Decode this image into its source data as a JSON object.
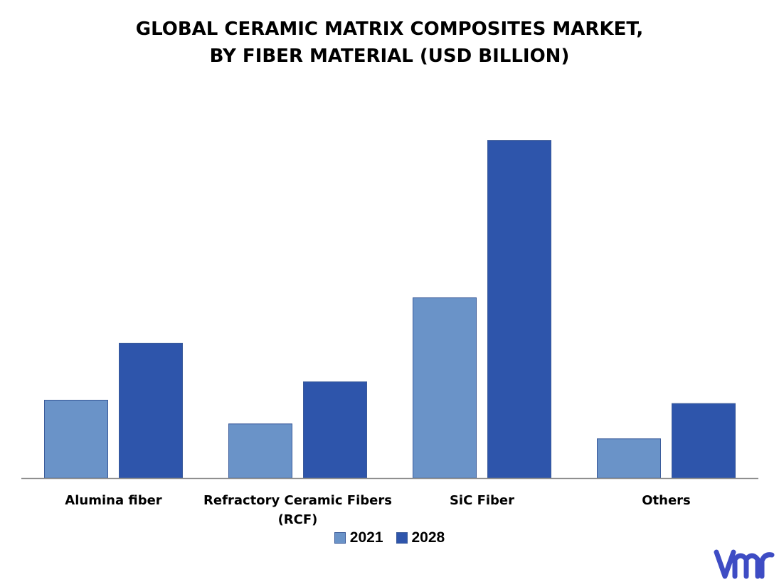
{
  "chart_data": {
    "type": "bar",
    "title_lines": [
      "GLOBAL CERAMIC MATRIX COMPOSITES MARKET,",
      "BY FIBER MATERIAL (USD BILLION)"
    ],
    "categories": [
      [
        "Alumina fiber"
      ],
      [
        "Refractory Ceramic Fibers",
        "(RCF)"
      ],
      [
        "SiC Fiber"
      ],
      [
        "Others"
      ]
    ],
    "series": [
      {
        "name": "2021",
        "color": "#6a93c8",
        "values": [
          1.15,
          0.8,
          2.66,
          0.58
        ]
      },
      {
        "name": "2028",
        "color": "#2e55ab",
        "values": [
          1.99,
          1.42,
          4.98,
          1.1
        ]
      }
    ],
    "ylim": [
      0,
      5.5
    ],
    "grid": false,
    "legend_position": "bottom",
    "xlabel": "",
    "ylabel": ""
  },
  "logo": {
    "name": "vmr-logo",
    "color": "#3e4cc4"
  }
}
